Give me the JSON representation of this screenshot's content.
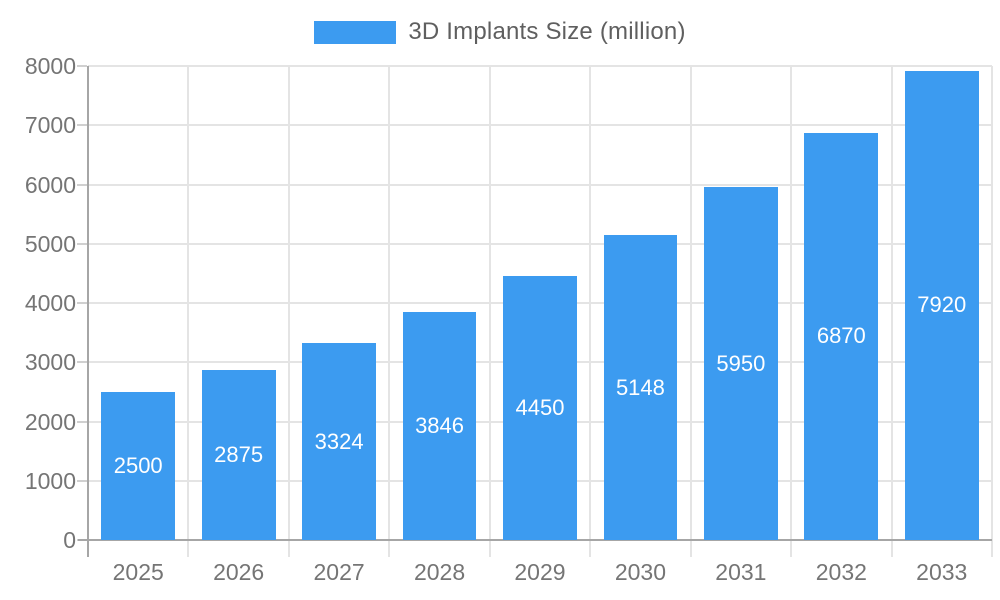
{
  "chart_data": {
    "type": "bar",
    "title": "",
    "legend": "3D Implants Size (million)",
    "legend_position": "top-center",
    "categories": [
      "2025",
      "2026",
      "2027",
      "2028",
      "2029",
      "2030",
      "2031",
      "2032",
      "2033"
    ],
    "series": [
      {
        "name": "3D Implants Size (million)",
        "values": [
          2500,
          2875,
          3324,
          3846,
          4450,
          5148,
          5950,
          6870,
          7920
        ]
      }
    ],
    "data_labels": [
      "2500",
      "2875",
      "3324",
      "3846",
      "4450",
      "5148",
      "5950",
      "6870",
      "7920"
    ],
    "xlabel": "",
    "ylabel": "",
    "ylim": [
      0,
      8000
    ],
    "ytick_step": 1000,
    "yticks": [
      "0",
      "1000",
      "2000",
      "3000",
      "4000",
      "5000",
      "6000",
      "7000",
      "8000"
    ],
    "grid": true,
    "colors": {
      "bar": "#3c9bf0",
      "bar_label_text": "#ffffff",
      "gridline": "#e4e4e4",
      "axis_line": "#a6a6a6",
      "y_tick": "#d0d0d0",
      "tick_text": "#757575",
      "legend_text": "#5f5f5f",
      "background": "#ffffff"
    }
  }
}
